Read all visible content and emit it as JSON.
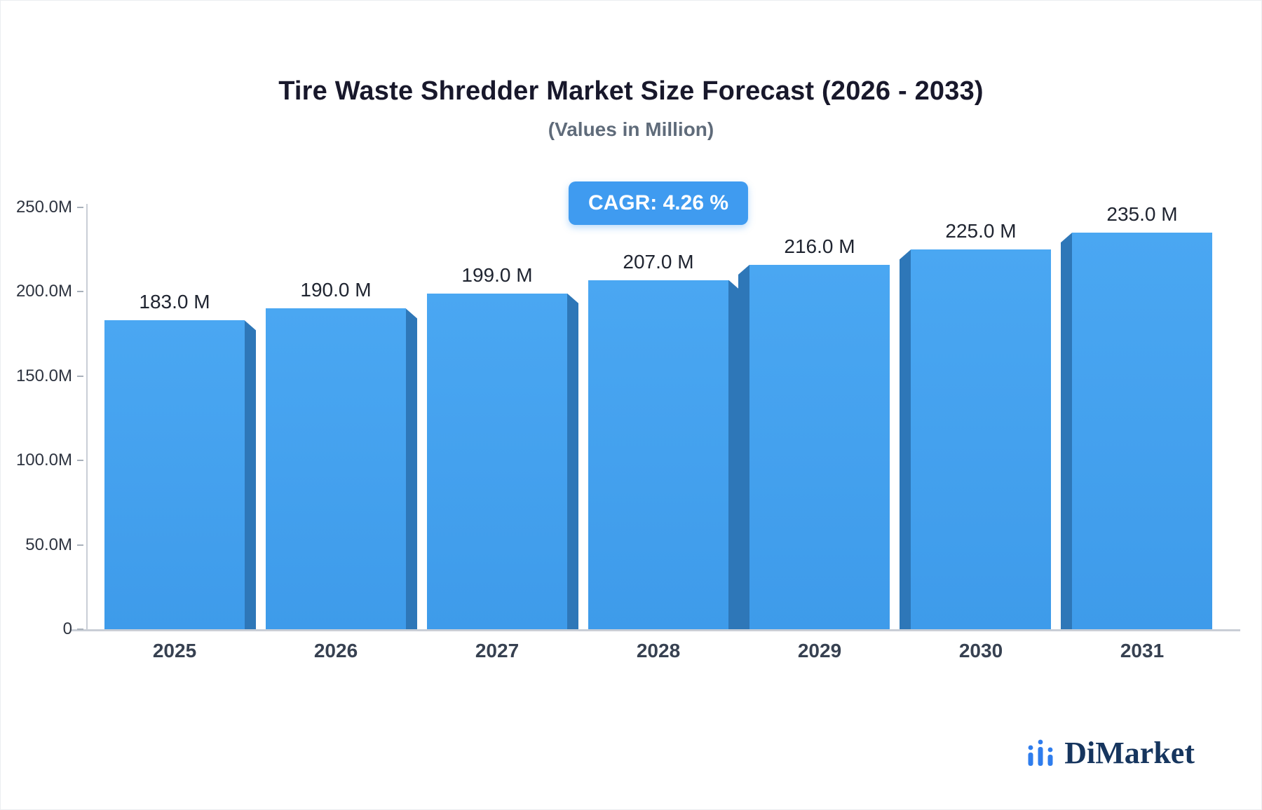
{
  "header": {
    "title": "Tire Waste Shredder Market Size Forecast (2026 - 2033)",
    "subtitle": "(Values in Million)"
  },
  "cagr_badge": "CAGR: 4.26 %",
  "brand": "DiMarket",
  "chart_data": {
    "type": "bar",
    "title": "Tire Waste Shredder Market Size Forecast (2026 - 2033)",
    "subtitle": "(Values in Million)",
    "xlabel": "",
    "ylabel": "",
    "categories": [
      "2025",
      "2026",
      "2027",
      "2028",
      "2029",
      "2030",
      "2031"
    ],
    "values": [
      183,
      190,
      199,
      207,
      216,
      225,
      235
    ],
    "bar_labels": [
      "183.0 M",
      "190.0 M",
      "199.0 M",
      "207.0 M",
      "216.0 M",
      "225.0 M",
      "235.0 M"
    ],
    "ytick_values": [
      250,
      200,
      150,
      100,
      50,
      0
    ],
    "ytick_labels": [
      "250.0M",
      "200.0M",
      "150.0M",
      "100.0M",
      "50.0M",
      "0"
    ],
    "ylim": [
      0,
      250
    ],
    "grid": false,
    "legend": "none",
    "bar_color": "#3f9eec",
    "bar_side_color": "#2e77b8",
    "bar_side": [
      "right",
      "right",
      "right",
      "right",
      "left",
      "left",
      "left"
    ],
    "cagr": "4.26 %"
  }
}
